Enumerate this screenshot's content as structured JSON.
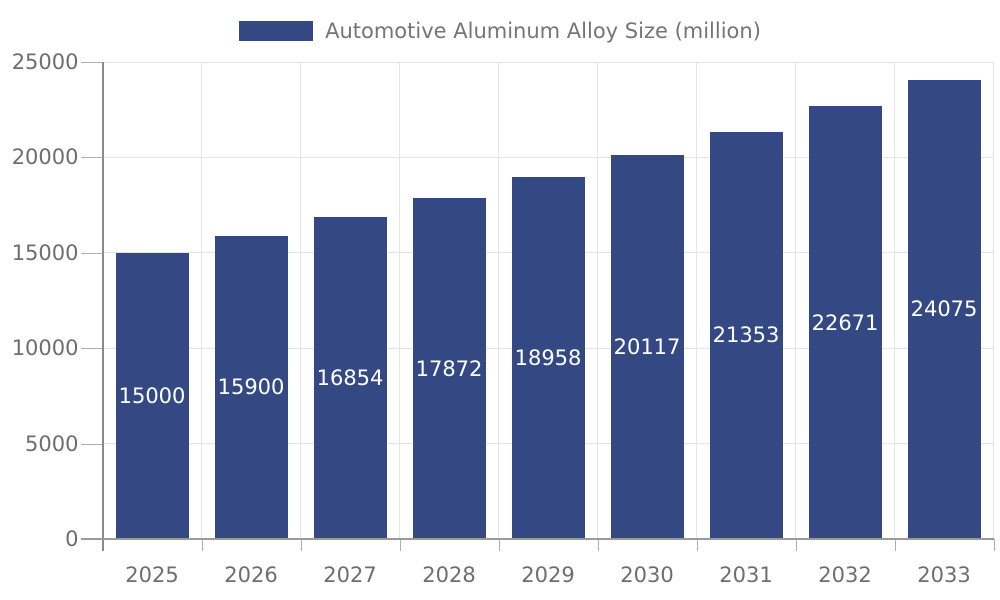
{
  "legend": {
    "label": "Automotive Aluminum Alloy Size (million)"
  },
  "chart_data": {
    "type": "bar",
    "title": "",
    "xlabel": "",
    "ylabel": "",
    "series_name": "Automotive Aluminum Alloy Size (million)",
    "categories": [
      "2025",
      "2026",
      "2027",
      "2028",
      "2029",
      "2030",
      "2031",
      "2032",
      "2033"
    ],
    "values": [
      15000,
      15900,
      16854,
      17872,
      18958,
      20117,
      21353,
      22671,
      24075
    ],
    "ylim": [
      0,
      25000
    ],
    "yticks": [
      0,
      5000,
      10000,
      15000,
      20000,
      25000
    ],
    "grid": true,
    "legend_position": "top",
    "bar_color": "#344983",
    "value_label_color": "#ffffff",
    "axis_text_color": "#6e6e6e",
    "legend_text_color": "#757575"
  }
}
